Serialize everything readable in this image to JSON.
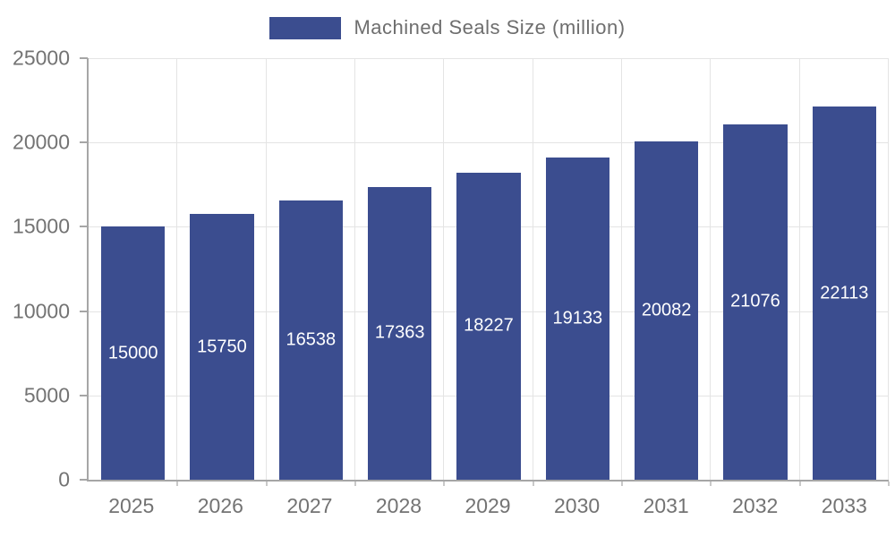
{
  "chart_data": {
    "type": "bar",
    "title": "",
    "legend": {
      "label": "Machined Seals Size (million)",
      "position": "top-center"
    },
    "categories": [
      "2025",
      "2026",
      "2027",
      "2028",
      "2029",
      "2030",
      "2031",
      "2032",
      "2033"
    ],
    "series": [
      {
        "name": "Machined Seals Size (million)",
        "values": [
          15000,
          15750,
          16538,
          17363,
          18227,
          19133,
          20082,
          21076,
          22113
        ]
      }
    ],
    "xlabel": "",
    "ylabel": "",
    "ylim": [
      0,
      25000
    ],
    "ytick_step": 5000,
    "ytick_labels": [
      "0",
      "5000",
      "10000",
      "15000",
      "20000",
      "25000"
    ],
    "grid": "both",
    "value_labels": "inside-center-white"
  },
  "colors": {
    "bar_fill": "#3b4d8f",
    "axis_line": "#a6a6a6",
    "gridline": "#e4e4e4",
    "tick_label": "#737373",
    "legend_text": "#6e6e6e",
    "value_label": "#ffffff",
    "background": "#ffffff"
  }
}
